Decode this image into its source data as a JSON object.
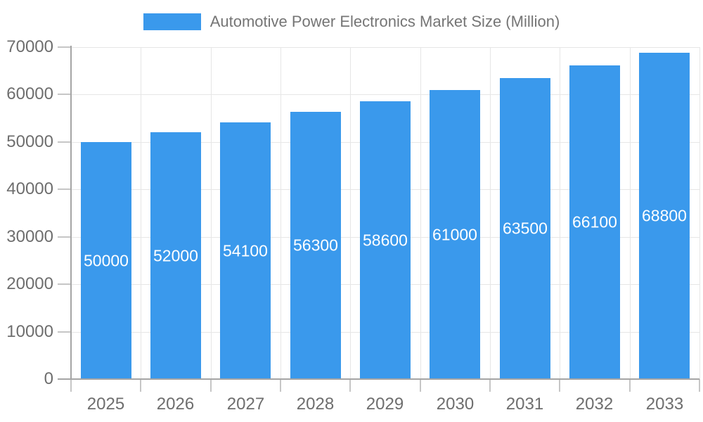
{
  "legend": {
    "label": "Automotive Power Electronics Market Size (Million)"
  },
  "chart_data": {
    "type": "bar",
    "title": "Automotive Power Electronics Market Size (Million)",
    "categories": [
      "2025",
      "2026",
      "2027",
      "2028",
      "2029",
      "2030",
      "2031",
      "2032",
      "2033"
    ],
    "values": [
      50000,
      52000,
      54100,
      56300,
      58600,
      61000,
      63500,
      66100,
      68800
    ],
    "series": [
      {
        "name": "Automotive Power Electronics Market Size (Million)",
        "values": [
          50000,
          52000,
          54100,
          56300,
          58600,
          61000,
          63500,
          66100,
          68800
        ]
      }
    ],
    "xlabel": "",
    "ylabel": "",
    "ylim": [
      0,
      70000
    ],
    "y_ticks": [
      0,
      10000,
      20000,
      30000,
      40000,
      50000,
      60000,
      70000
    ],
    "grid": true,
    "legend_position": "top",
    "bar_color": "#3a99ec",
    "data_label_color": "#ffffff",
    "data_labels_position": "inside-center"
  }
}
